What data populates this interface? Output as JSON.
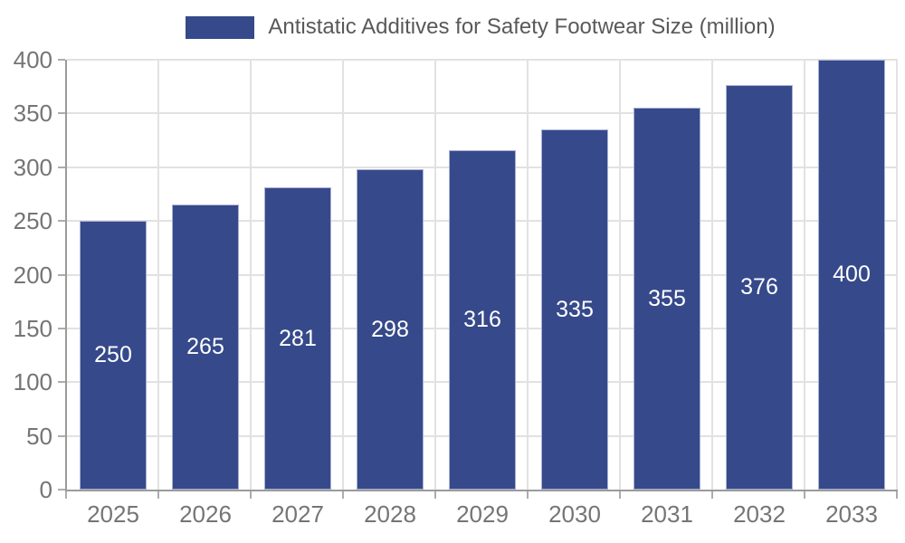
{
  "chart_data": {
    "type": "bar",
    "title": "Antistatic Additives for Safety Footwear Size (million)",
    "categories": [
      "2025",
      "2026",
      "2027",
      "2028",
      "2029",
      "2030",
      "2031",
      "2032",
      "2033"
    ],
    "values": [
      250,
      265,
      281,
      298,
      316,
      335,
      355,
      376,
      400
    ],
    "xlabel": "",
    "ylabel": "",
    "ylim": [
      0,
      400
    ],
    "ytick_step": 50,
    "yticks": [
      0,
      50,
      100,
      150,
      200,
      250,
      300,
      350,
      400
    ],
    "grid": true,
    "legend_position": "top",
    "bar_value_labels": "inside-center",
    "colors": {
      "bar_fill": "#36498A",
      "bar_border": "#A9B1D4",
      "grid_line": "#E2E2E2",
      "axis_spine": "#9B9B9B",
      "tick_mark": "#ADADAD",
      "tick_label": "#757575",
      "value_label": "#FFFFFF",
      "legend_text": "#595959",
      "background": "#FFFFFF"
    }
  }
}
